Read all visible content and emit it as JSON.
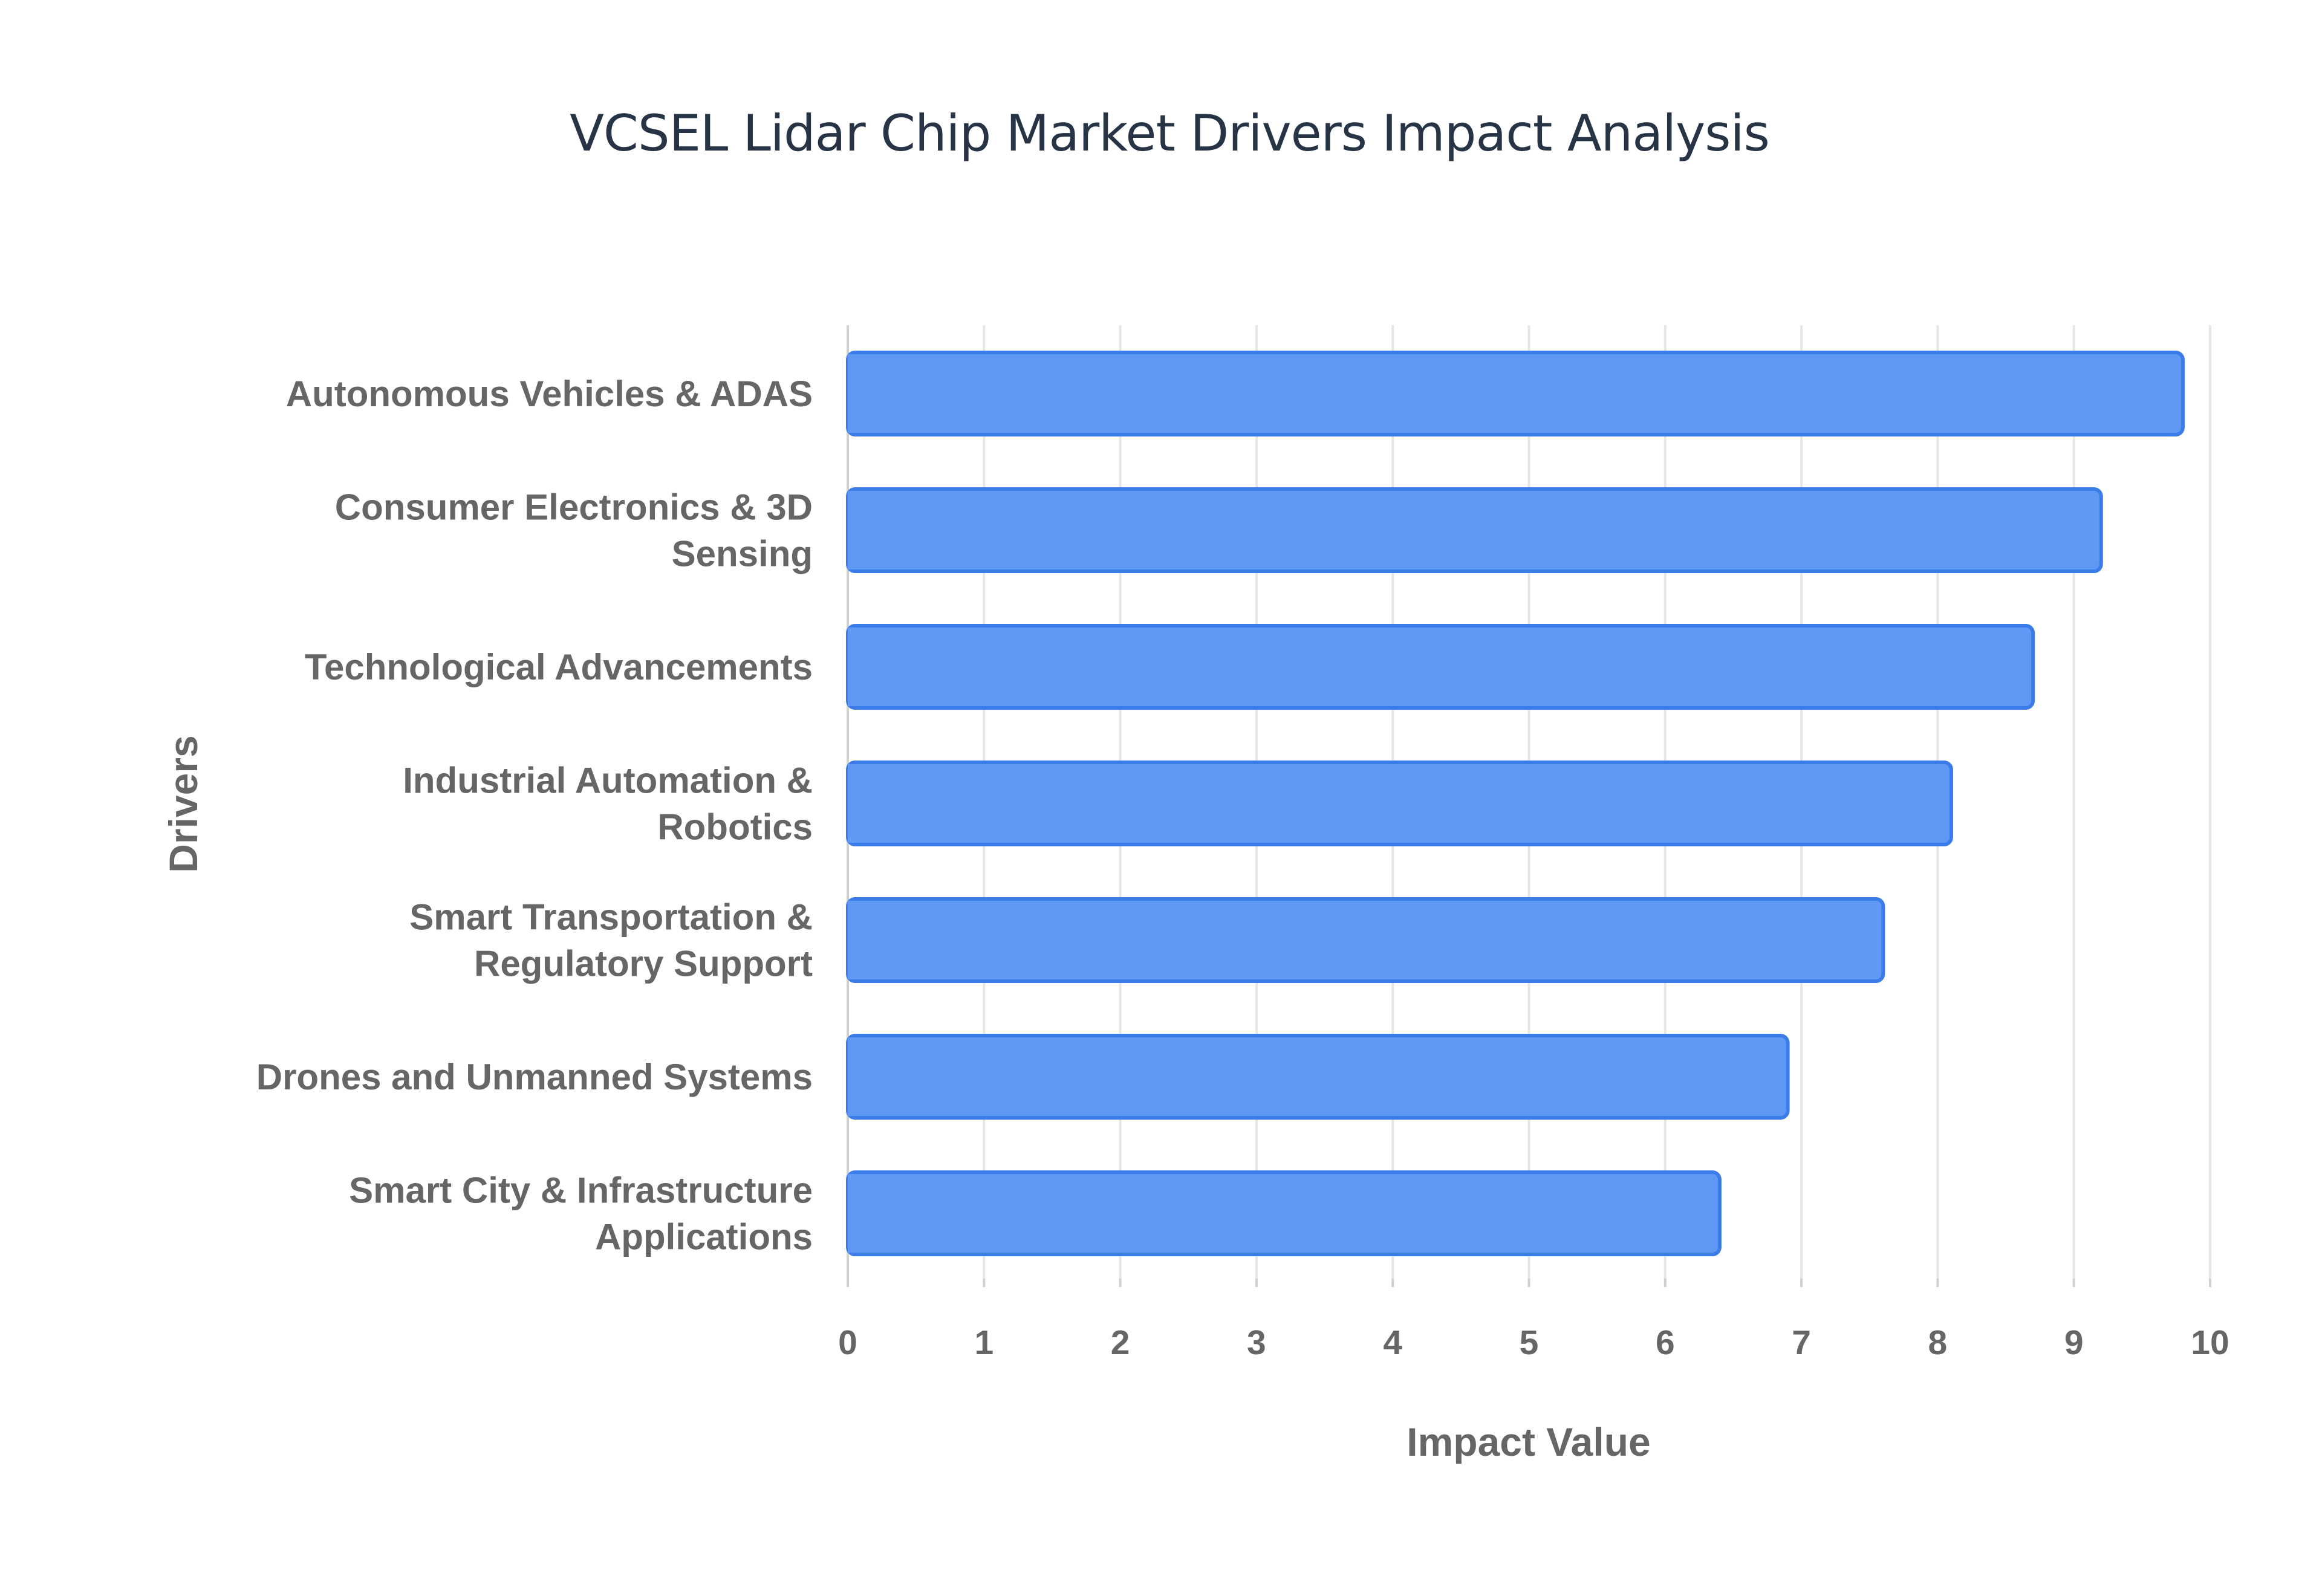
{
  "chart_data": {
    "type": "bar",
    "orientation": "horizontal",
    "title": "VCSEL Lidar Chip Market Drivers Impact Analysis",
    "xlabel": "Impact Value",
    "ylabel": "Drivers",
    "xlim": [
      0,
      10
    ],
    "xticks": [
      "0",
      "1",
      "2",
      "3",
      "4",
      "5",
      "6",
      "7",
      "8",
      "9",
      "10"
    ],
    "grid": true,
    "categories": [
      [
        "Autonomous Vehicles & ADAS"
      ],
      [
        "Consumer Electronics & 3D",
        "Sensing"
      ],
      [
        "Technological Advancements"
      ],
      [
        "Industrial Automation &",
        "Robotics"
      ],
      [
        "Smart Transportation &",
        "Regulatory Support"
      ],
      [
        "Drones and Unmanned Systems"
      ],
      [
        "Smart City & Infrastructure",
        "Applications"
      ]
    ],
    "values": [
      9.8,
      9.2,
      8.7,
      8.1,
      7.6,
      6.9,
      6.4
    ],
    "colors": {
      "bar_fill": "#6098f5",
      "bar_stroke": "#3a7ce8",
      "grid": "#e6e6e6",
      "axis": "#d0d0d0",
      "text": "#666666",
      "title": "#263445"
    }
  }
}
